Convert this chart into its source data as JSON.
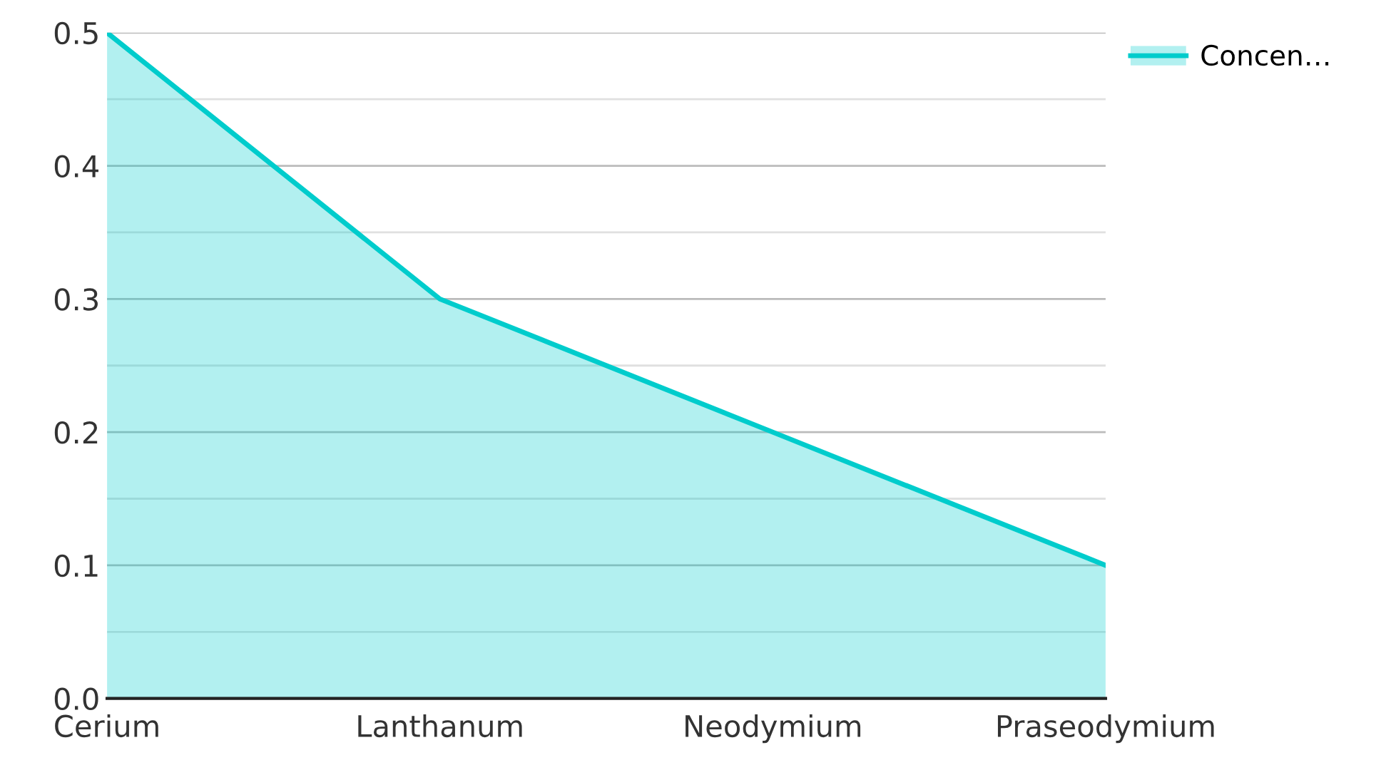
{
  "chart_data": {
    "type": "area",
    "categories": [
      "Cerium",
      "Lanthanum",
      "Neodymium",
      "Praseodymium"
    ],
    "series": [
      {
        "name": "Concen…",
        "color": "#00cccc",
        "values": [
          0.5,
          0.3,
          0.2,
          0.1
        ]
      }
    ],
    "ylim": [
      0,
      0.5
    ],
    "yticks": [
      {
        "value": 0,
        "label": "0.0"
      },
      {
        "value": 0.05,
        "label": null
      },
      0.1,
      {
        "value": 0.15,
        "label": null
      },
      0.2,
      {
        "value": 0.25,
        "label": null
      },
      0.3,
      {
        "value": 0.35,
        "label": null
      },
      0.4,
      {
        "value": 0.45,
        "label": null
      },
      0.5
    ],
    "grid": "y",
    "legend": "top right"
  }
}
